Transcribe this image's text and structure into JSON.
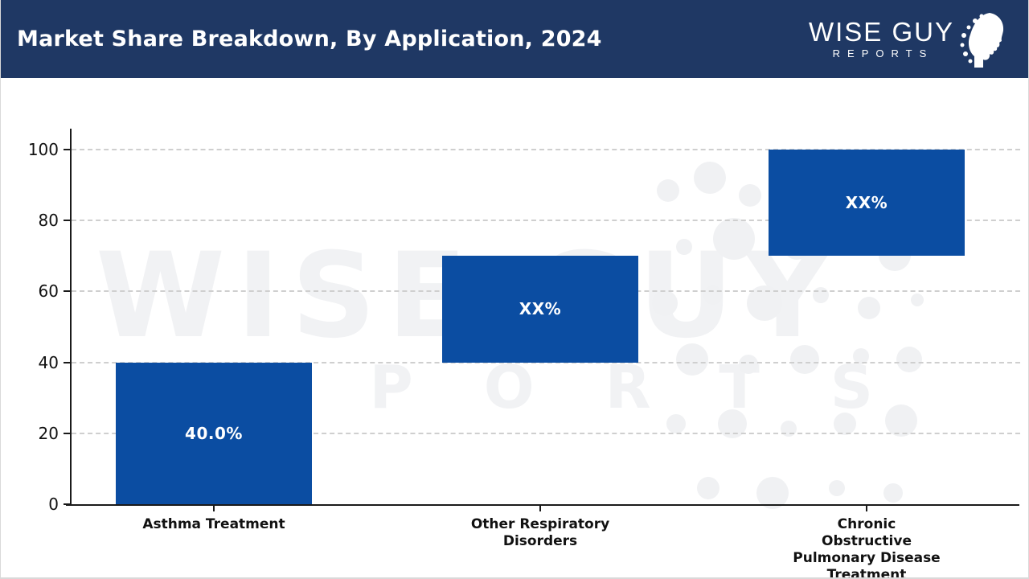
{
  "header": {
    "title": "Market Share Breakdown, By Application, 2024",
    "logo": {
      "line1": "WISE GUY",
      "line2": "REPORTS"
    }
  },
  "watermark": {
    "line1": "WISE GUY",
    "line2": "REPORTS"
  },
  "chart_data": {
    "type": "bar",
    "subtype": "floating-segment-percentage",
    "title": "Market Share Breakdown, By Application, 2024",
    "categories": [
      "Asthma Treatment",
      "Other Respiratory\nDisorders",
      "Chronic\nObstructive\nPulmonary Disease\nTreatment"
    ],
    "bars": [
      {
        "category": "Asthma Treatment",
        "start": 0,
        "end": 40,
        "value_label": "40.0%"
      },
      {
        "category": "Other Respiratory Disorders",
        "start": 40,
        "end": 70,
        "value_label": "XX%"
      },
      {
        "category": "Chronic Obstructive Pulmonary Disease Treatment",
        "start": 70,
        "end": 100,
        "value_label": "XX%"
      }
    ],
    "xlabel": "",
    "ylabel": "",
    "ylim": [
      0,
      106
    ],
    "yticks": [
      0,
      20,
      40,
      60,
      80,
      100
    ],
    "grid": "horizontal-dashed",
    "legend": "none",
    "colors": {
      "bar": "#0b4da2",
      "header_bg": "#1f3864",
      "grid": "#cfcfcf",
      "axis": "#1a1a1a",
      "value_label_text": "#ffffff",
      "watermark": "#f1f2f4"
    }
  }
}
